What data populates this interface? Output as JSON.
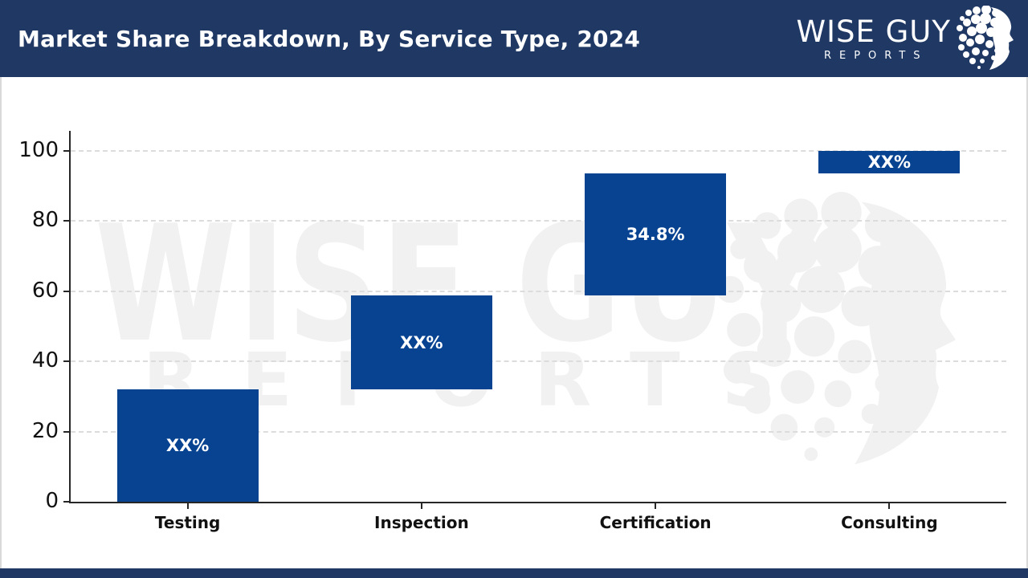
{
  "header": {
    "title": "Market Share Breakdown, By Service Type, 2024",
    "bg_color": "#1f3864"
  },
  "logo": {
    "line1": "WISE GUY",
    "line2": "REPORTS"
  },
  "watermark": {
    "line1": "WISE GUY",
    "line2": "REPORTS"
  },
  "footer": {
    "bg_color": "#1f3864"
  },
  "chart_data": {
    "type": "bar",
    "subtype": "waterfall",
    "title": "Market Share Breakdown, By Service Type, 2024",
    "categories": [
      "Testing",
      "Inspection",
      "Certification",
      "Consulting"
    ],
    "segments": [
      {
        "category": "Testing",
        "start": 0,
        "end": 32,
        "value": 32,
        "label": "XX%"
      },
      {
        "category": "Inspection",
        "start": 32,
        "end": 58.8,
        "value": 26.8,
        "label": "XX%"
      },
      {
        "category": "Certification",
        "start": 58.8,
        "end": 93.6,
        "value": 34.8,
        "label": "34.8%"
      },
      {
        "category": "Consulting",
        "start": 93.6,
        "end": 100,
        "value": 6.4,
        "label": "XX%"
      }
    ],
    "y_ticks": [
      0,
      20,
      40,
      60,
      80,
      100
    ],
    "ylim": [
      0,
      105.5
    ],
    "bar_color": "#084392",
    "gridline_color": "#dcdcdc",
    "grid": "dashed-horizontal",
    "legend": "none"
  }
}
